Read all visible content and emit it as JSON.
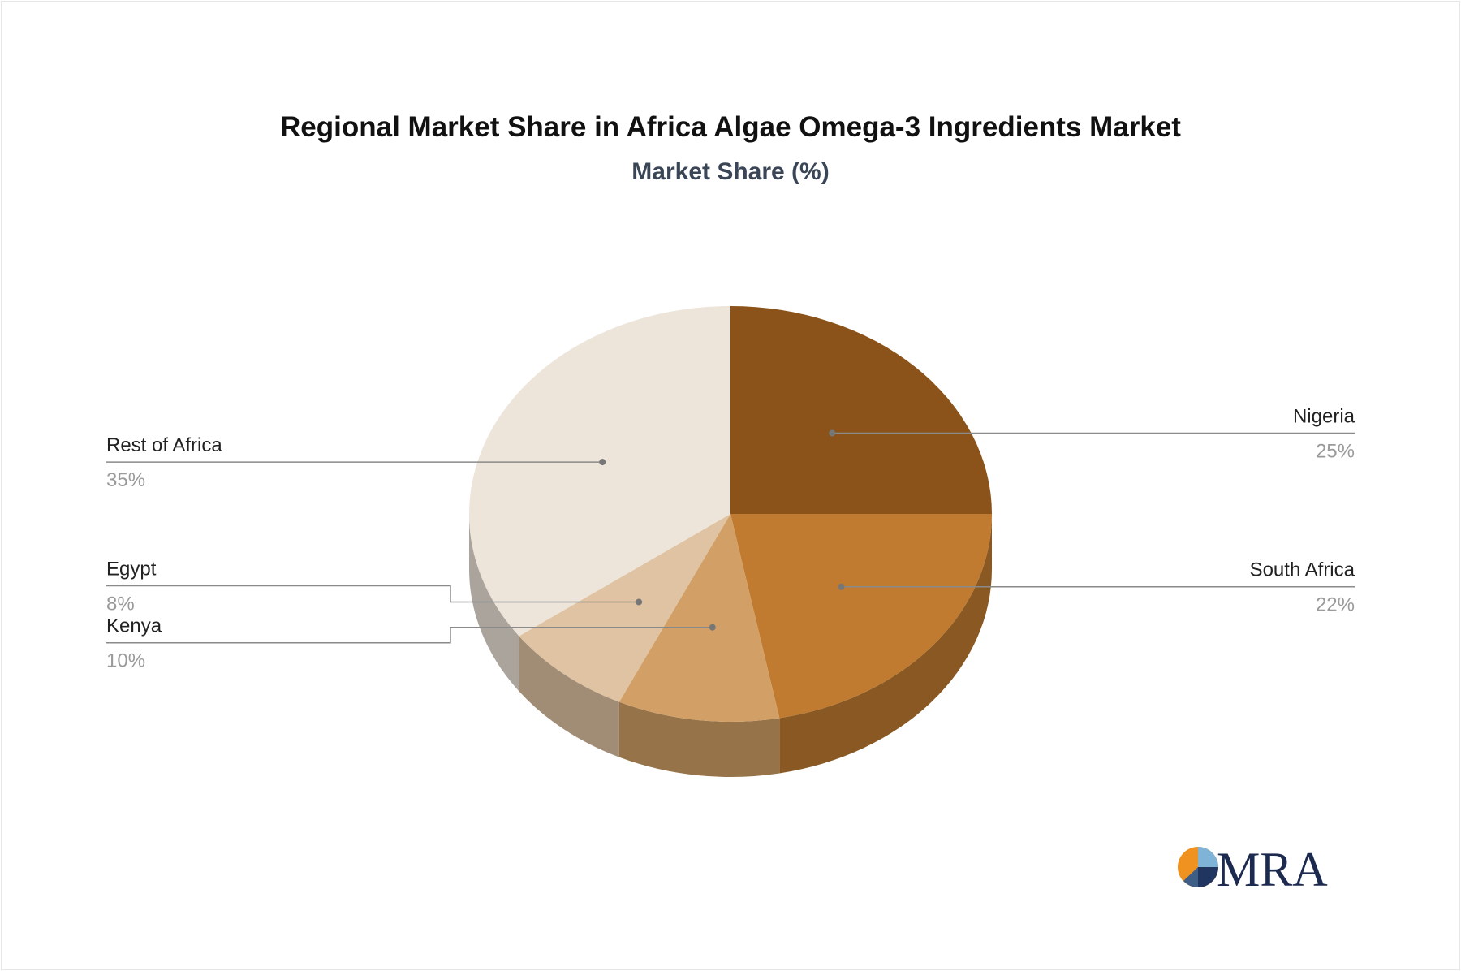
{
  "chart_data": {
    "type": "pie",
    "title": "Regional Market Share in Africa Algae Omega-3 Ingredients Market",
    "subtitle": "Market Share (%)",
    "slices": [
      {
        "label": "Nigeria",
        "value": 25,
        "value_label": "25%",
        "color": "#8b5219"
      },
      {
        "label": "South Africa",
        "value": 22,
        "value_label": "22%",
        "color": "#c07b30"
      },
      {
        "label": "Kenya",
        "value": 10,
        "value_label": "10%",
        "color": "#d2a066"
      },
      {
        "label": "Egypt",
        "value": 8,
        "value_label": "8%",
        "color": "#dfc3a2"
      },
      {
        "label": "Rest of Africa",
        "value": 35,
        "value_label": "35%",
        "color": "#ede4da"
      }
    ],
    "style": "3d",
    "start": "top",
    "direction": "clockwise"
  },
  "logo": {
    "text": "MRA"
  }
}
